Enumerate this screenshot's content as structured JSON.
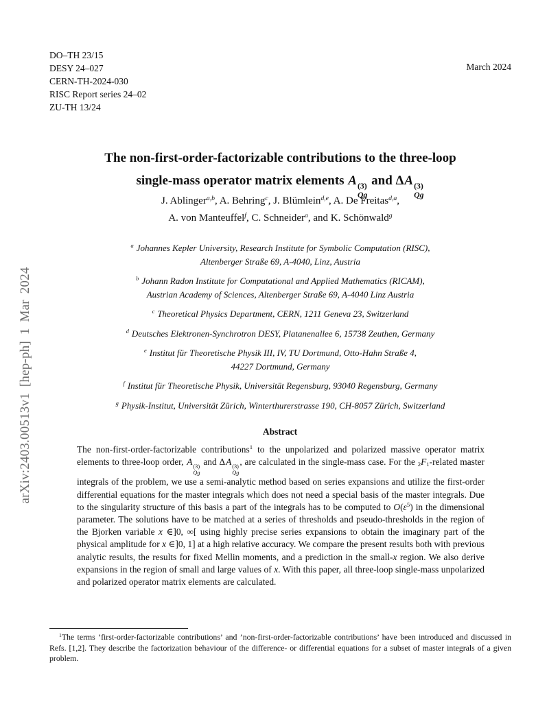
{
  "colors": {
    "background": "#ffffff",
    "text": "#111111",
    "stamp_gray": "#6e6e6e"
  },
  "stamp": {
    "text": "arXiv:2403.00513v1 [hep-ph] 1 Mar 2024"
  },
  "header": {
    "report_numbers": [
      "DO–TH 23/15",
      "DESY 24–027",
      "CERN-TH-2024-030",
      "RISC Report series 24–02",
      "ZU-TH 13/24"
    ],
    "date": "March 2024"
  },
  "title": {
    "line1": "The non-first-order-factorizable contributions to the three-loop",
    "line2_rich": [
      "single-mass operator matrix elements ",
      {
        "stack": {
          "base": "A",
          "sup": "(3)",
          "sub": "Qg"
        }
      },
      " and Δ",
      {
        "stack": {
          "base": "A",
          "sup": "(3)",
          "sub": "Qg"
        }
      }
    ]
  },
  "authors": {
    "line1_rich": [
      "J. Ablinger",
      {
        "sup": "a,b"
      },
      ", A. Behring",
      {
        "sup": "c"
      },
      ", J. Blümlein",
      {
        "sup": "d,e"
      },
      ", A. De Freitas",
      {
        "sup": "d,a"
      },
      ","
    ],
    "line2_rich": [
      "A. von Manteuffel",
      {
        "sup": "f"
      },
      ", C. Schneider",
      {
        "sup": "a"
      },
      ", and K. Schönwald",
      {
        "sup": "g"
      }
    ]
  },
  "affiliations": [
    {
      "marker": "a",
      "lines": [
        "Johannes Kepler University, Research Institute for Symbolic Computation (RISC),",
        "Altenberger Straße 69, A-4040, Linz, Austria"
      ]
    },
    {
      "marker": "b",
      "lines": [
        "Johann Radon Institute for Computational and Applied Mathematics (RICAM),",
        "Austrian Academy of Sciences, Altenberger Straße 69, A-4040 Linz Austria"
      ]
    },
    {
      "marker": "c",
      "lines": [
        "Theoretical Physics Department, CERN, 1211 Geneva 23, Switzerland"
      ]
    },
    {
      "marker": "d",
      "lines": [
        "Deutsches Elektronen-Synchrotron DESY, Platanenallee 6, 15738 Zeuthen, Germany"
      ]
    },
    {
      "marker": "e",
      "lines": [
        "Institut für Theoretische Physik III, IV, TU Dortmund, Otto-Hahn Straße 4,",
        "44227 Dortmund, Germany"
      ]
    },
    {
      "marker": "f",
      "lines": [
        "Institut für Theoretische Physik, Universität Regensburg, 93040 Regensburg, Germany"
      ]
    },
    {
      "marker": "g",
      "lines": [
        "Physik-Institut, Universität Zürich, Winterthurerstrasse 190, CH-8057 Zürich, Switzerland"
      ]
    }
  ],
  "abstract": {
    "heading": "Abstract",
    "body_rich": [
      "The non-first-order-factorizable contributions",
      {
        "sup": "1"
      },
      " to the unpolarized and polarized massive operator matrix elements to three-loop order, ",
      {
        "stack": {
          "base": "A",
          "sup": "(3)",
          "sub": "Qg"
        }
      },
      " and Δ",
      {
        "stack": {
          "base": "A",
          "sup": "(3)",
          "sub": "Qg"
        }
      },
      ", are calculated in the single-mass case. For the ",
      {
        "sub": "2"
      },
      {
        "i": "F"
      },
      {
        "sub": "1"
      },
      "-related master integrals of the problem, we use a semi-analytic method based on series expansions and utilize the first-order differential equations for the master integrals which does not need a special basis of the master integrals. Due to the singularity structure of this basis a part of the integrals has to be computed to ",
      {
        "i": "O"
      },
      "(",
      {
        "i": "ε"
      },
      {
        "sup": "5"
      },
      ") in the dimensional parameter. The solutions have to be matched at a series of thresholds and pseudo-thresholds in the region of the Bjorken variable ",
      {
        "i": "x"
      },
      " ∈]0, ∞[ using highly precise series expansions to obtain the imaginary part of the physical amplitude for ",
      {
        "i": "x"
      },
      " ∈]0, 1] at a high relative accuracy. We compare the present results both with previous analytic results, the results for fixed Mellin moments, and a prediction in the small-",
      {
        "i": "x"
      },
      " region. We also derive expansions in the region of small and large values of ",
      {
        "i": "x"
      },
      ". With this paper, all three-loop single-mass unpolarized and polarized operator matrix elements are calculated."
    ]
  },
  "footnote": {
    "text_rich": [
      {
        "sup": "1"
      },
      "The terms ’first-order-factorizable contributions’ and ’non-first-order-factorizable contributions’ have been introduced and discussed in Refs. [1,2]. They describe the factorization behaviour of the difference- or differential equations for a subset of master integrals of a given problem."
    ]
  }
}
